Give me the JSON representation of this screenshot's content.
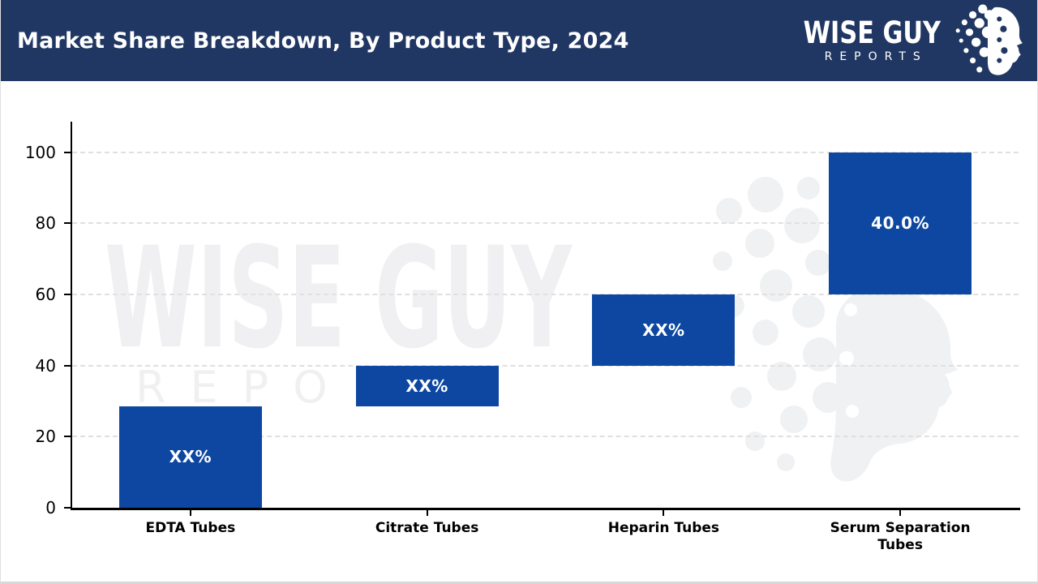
{
  "header": {
    "title": "Market Share Breakdown, By Product Type, 2024",
    "logo": {
      "line1": "WISE GUY",
      "line2": "REPORTS"
    }
  },
  "watermark": {
    "line1": "WISE GUY",
    "line2": "REPORTS"
  },
  "chart_data": {
    "type": "bar",
    "variant": "waterfall",
    "title": "Market Share Breakdown, By Product Type, 2024",
    "categories": [
      "EDTA Tubes",
      "Citrate Tubes",
      "Heparin Tubes",
      "Serum Separation Tubes"
    ],
    "segments": [
      {
        "category": "EDTA Tubes",
        "start": 0,
        "end": 28.6,
        "label": "XX%"
      },
      {
        "category": "Citrate Tubes",
        "start": 28.6,
        "end": 40,
        "label": "XX%"
      },
      {
        "category": "Heparin Tubes",
        "start": 40,
        "end": 60,
        "label": "XX%"
      },
      {
        "category": "Serum Separation Tubes",
        "start": 60,
        "end": 100,
        "label": "40.0%"
      }
    ],
    "ylim": [
      0,
      100
    ],
    "yticks": [
      0,
      20,
      40,
      60,
      80,
      100
    ],
    "xlabel": "",
    "ylabel": "",
    "grid": "horizontal-dashed",
    "legend": "none",
    "colors": {
      "bar": "#0d47a1",
      "bar_label": "#ffffff",
      "axis": "#000000",
      "gridline": "#e0e0e0",
      "header_bg": "#213763",
      "watermark": "#f0f0f2"
    }
  }
}
